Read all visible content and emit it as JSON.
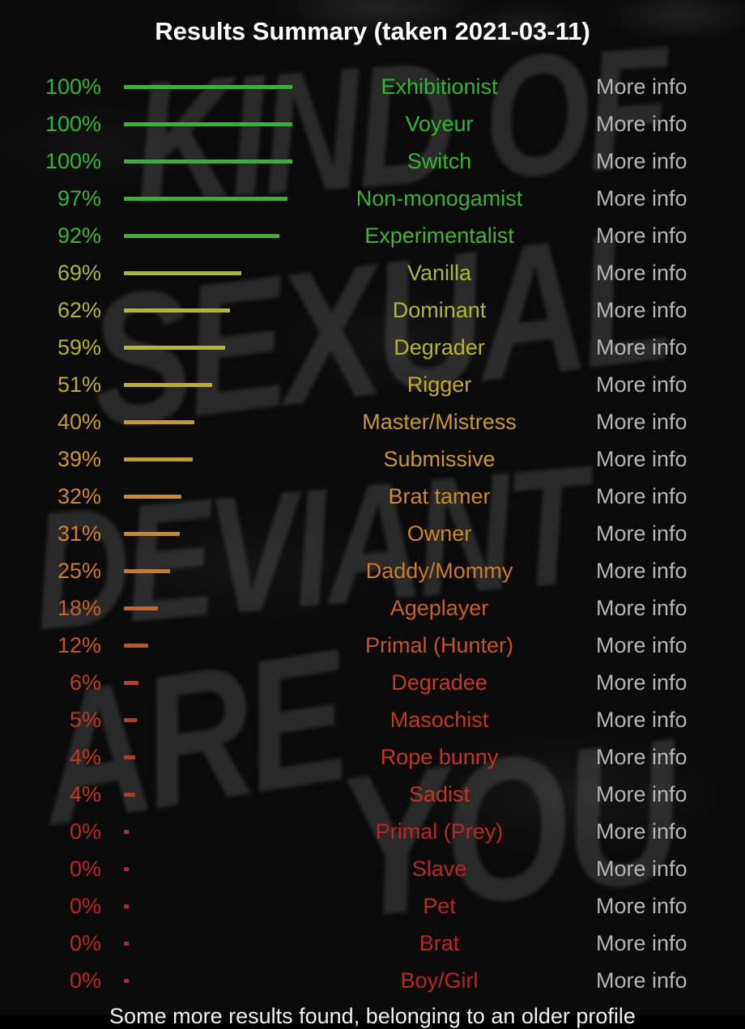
{
  "page": {
    "title": "Results Summary (taken 2021-03-11)",
    "more_info_label": "More info",
    "footer_partial": "Some more results found, belonging to an older profile",
    "colors": {
      "background": "#0a0a0a",
      "title_text": "#ffffff",
      "more_info_text": "#b5b5b5",
      "watermark": "#5a5a5a"
    }
  },
  "watermark": {
    "words": [
      "KIND OF",
      "SEXUAL",
      "DEVIANT",
      "ARE",
      "YOU"
    ]
  },
  "results": [
    {
      "pct": 100,
      "pct_label": "100%",
      "label": "Exhibitionist",
      "color": "#2eb82e"
    },
    {
      "pct": 100,
      "pct_label": "100%",
      "label": "Voyeur",
      "color": "#2eb82e"
    },
    {
      "pct": 100,
      "pct_label": "100%",
      "label": "Switch",
      "color": "#2eb82e"
    },
    {
      "pct": 97,
      "pct_label": "97%",
      "label": "Non-monogamist",
      "color": "#35b62c"
    },
    {
      "pct": 92,
      "pct_label": "92%",
      "label": "Experimentalist",
      "color": "#45b42b"
    },
    {
      "pct": 69,
      "pct_label": "69%",
      "label": "Vanilla",
      "color": "#a4bc28"
    },
    {
      "pct": 62,
      "pct_label": "62%",
      "label": "Dominant",
      "color": "#b0b825"
    },
    {
      "pct": 59,
      "pct_label": "59%",
      "label": "Degrader",
      "color": "#b9b423"
    },
    {
      "pct": 51,
      "pct_label": "51%",
      "label": "Rigger",
      "color": "#bfad20"
    },
    {
      "pct": 40,
      "pct_label": "40%",
      "label": "Master/Mistress",
      "color": "#c89c20"
    },
    {
      "pct": 39,
      "pct_label": "39%",
      "label": "Submissive",
      "color": "#c99a20"
    },
    {
      "pct": 32,
      "pct_label": "32%",
      "label": "Brat tamer",
      "color": "#cb8a23"
    },
    {
      "pct": 31,
      "pct_label": "31%",
      "label": "Owner",
      "color": "#cb8722"
    },
    {
      "pct": 25,
      "pct_label": "25%",
      "label": "Daddy/Mommy",
      "color": "#cc7b20"
    },
    {
      "pct": 18,
      "pct_label": "18%",
      "label": "Ageplayer",
      "color": "#c8601f"
    },
    {
      "pct": 12,
      "pct_label": "12%",
      "label": "Primal (Hunter)",
      "color": "#c7531e"
    },
    {
      "pct": 6,
      "pct_label": "6%",
      "label": "Degradee",
      "color": "#c33b20"
    },
    {
      "pct": 5,
      "pct_label": "5%",
      "label": "Masochist",
      "color": "#c23720"
    },
    {
      "pct": 4,
      "pct_label": "4%",
      "label": "Rope bunny",
      "color": "#c23420"
    },
    {
      "pct": 4,
      "pct_label": "4%",
      "label": "Sadist",
      "color": "#c23420"
    },
    {
      "pct": 0,
      "pct_label": "0%",
      "label": "Primal (Prey)",
      "color": "#bf2323"
    },
    {
      "pct": 0,
      "pct_label": "0%",
      "label": "Slave",
      "color": "#bf2323"
    },
    {
      "pct": 0,
      "pct_label": "0%",
      "label": "Pet",
      "color": "#bf2323"
    },
    {
      "pct": 0,
      "pct_label": "0%",
      "label": "Brat",
      "color": "#bf2323"
    },
    {
      "pct": 0,
      "pct_label": "0%",
      "label": "Boy/Girl",
      "color": "#bf2323"
    }
  ]
}
